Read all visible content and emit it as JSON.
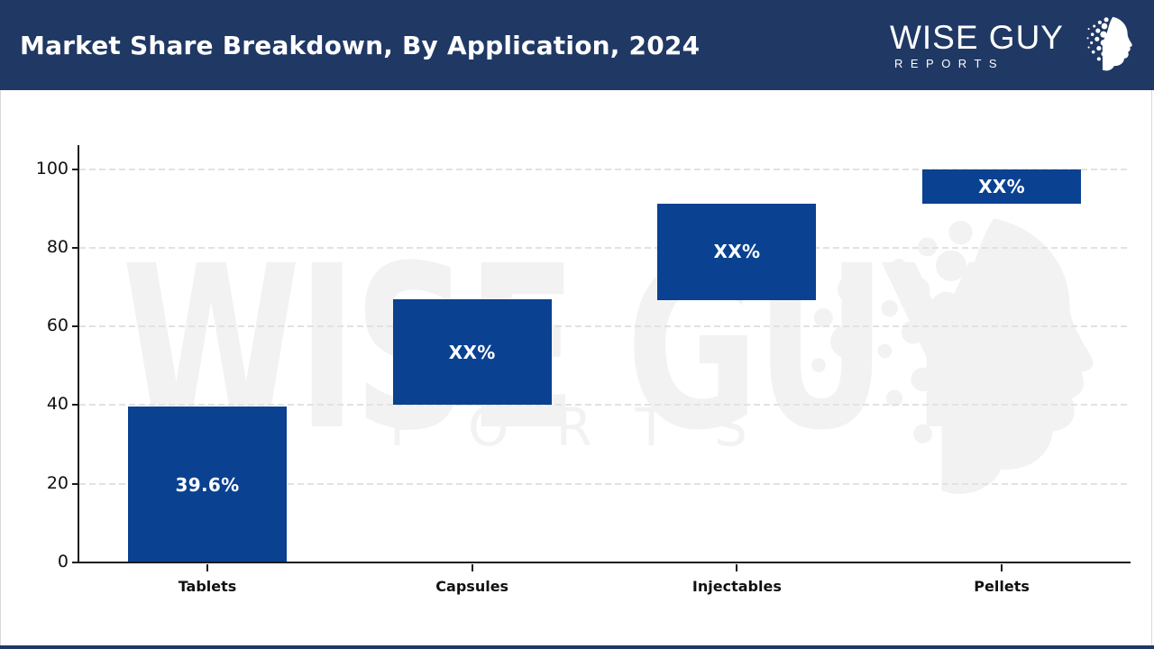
{
  "header": {
    "title": "Market Share Breakdown, By Application, 2024",
    "logo": {
      "line1": "WISE GUY",
      "line2": "REPORTS"
    }
  },
  "watermark": {
    "line1": "WISE GUY",
    "line2": "PORTS"
  },
  "colors": {
    "header_bg": "#203864",
    "bar": "#0a4191",
    "grid": "#e2e2e2",
    "axis": "#1a1a1a",
    "watermark": "#f2f2f2",
    "value_label": "#ffffff"
  },
  "chart_data": {
    "type": "bar",
    "subtype": "waterfall",
    "title": "Market Share Breakdown, By Application, 2024",
    "categories": [
      "Tablets",
      "Capsules",
      "Injectables",
      "Pellets"
    ],
    "segments": [
      {
        "category": "Tablets",
        "start": 0,
        "end": 39.6,
        "label": "39.6%"
      },
      {
        "category": "Capsules",
        "start": 40.0,
        "end": 66.8,
        "label": "XX%"
      },
      {
        "category": "Injectables",
        "start": 66.7,
        "end": 91.2,
        "label": "XX%"
      },
      {
        "category": "Pellets",
        "start": 91.2,
        "end": 100,
        "label": "XX%"
      }
    ],
    "yticks": [
      0,
      20,
      40,
      60,
      80,
      100
    ],
    "ylim": [
      0,
      106
    ],
    "xlabel": "",
    "ylabel": "",
    "grid": "dashed-horizontal",
    "legend": "none"
  }
}
